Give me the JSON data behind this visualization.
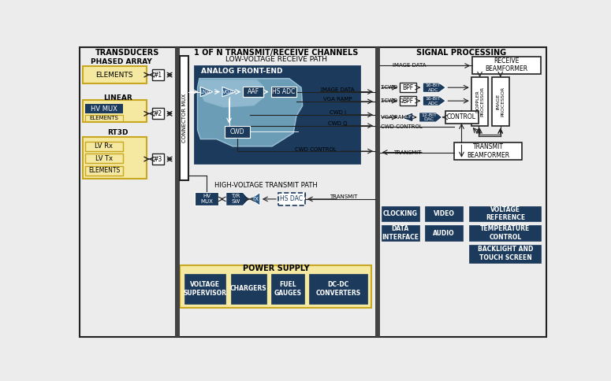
{
  "bg": "#ececec",
  "dark_blue": "#1b3a5c",
  "mid_blue": "#2a5c8a",
  "light_blue": "#7aafc8",
  "lighter_blue": "#aacde0",
  "yellow_fill": "#f5e8a0",
  "yellow_border": "#c8a820",
  "white": "#ffffff",
  "dark": "#222222",
  "gray": "#888888",
  "titles": {
    "transducers": "TRANSDUCERS",
    "channels": "1 OF N TRANSMIT/RECEIVE CHANNELS",
    "signal": "SIGNAL PROCESSING",
    "lowvolt": "LOW-VOLTAGE RECEIVE PATH",
    "highvolt": "HIGH-VOLTAGE TRANSMIT PATH",
    "afe": "ANALOG FRONT-END",
    "power": "POWER SUPPLY"
  }
}
